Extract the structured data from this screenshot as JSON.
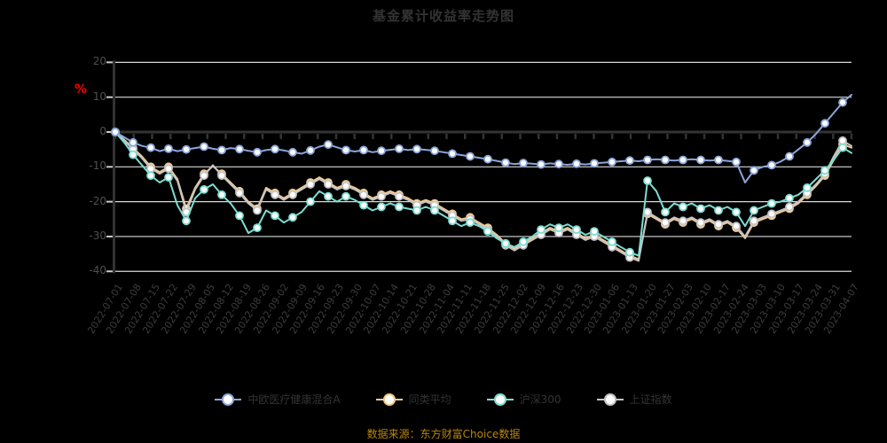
{
  "title": "基金累计收益率走势图",
  "y_axis_unit": {
    "text": "%",
    "color": "#FF0000"
  },
  "footer": "数据来源：东方财富Choice数据",
  "colors": {
    "background": "#000000",
    "grid_line": "#D9D9D9",
    "axis_line": "#333333",
    "title_text": "#333333",
    "tick_text": "#4F4F4F",
    "footer_text": "#B8860B"
  },
  "chart_data": {
    "type": "line",
    "title": "基金累计收益率走势图",
    "ylabel": "%",
    "ylim": [
      -40,
      20
    ],
    "y_ticks": [
      20,
      10,
      0,
      -10,
      -20,
      -30,
      -40
    ],
    "grid": true,
    "legend_position": "bottom",
    "x_tick_labels": [
      "2022-07-01",
      "2022-07-08",
      "2022-07-15",
      "2022-07-22",
      "2022-07-29",
      "2022-08-05",
      "2022-08-12",
      "2022-08-19",
      "2022-08-26",
      "2022-09-02",
      "2022-09-09",
      "2022-09-16",
      "2022-09-23",
      "2022-09-30",
      "2022-10-07",
      "2022-10-14",
      "2022-10-21",
      "2022-10-28",
      "2022-11-04",
      "2022-11-11",
      "2022-11-18",
      "2022-11-25",
      "2022-12-02",
      "2022-12-09",
      "2022-12-16",
      "2022-12-23",
      "2022-12-30",
      "2023-01-06",
      "2023-01-13",
      "2023-01-20",
      "2023-01-27",
      "2023-02-03",
      "2023-02-10",
      "2023-02-17",
      "2023-02-24",
      "2023-03-03",
      "2023-03-10",
      "2023-03-17",
      "2023-03-24",
      "2023-03-31",
      "2023-04-07"
    ],
    "sampling_note": "84 evenly spaced samples per series across full x range",
    "series": [
      {
        "name": "中欧医疗健康混合A",
        "color": "#8AA6DB",
        "values": [
          0,
          -1.5,
          -3,
          -4,
          -4.5,
          -5.5,
          -4.8,
          -5.5,
          -5,
          -4.6,
          -4.2,
          -4.8,
          -5.2,
          -4.6,
          -4.9,
          -5.4,
          -5.8,
          -5.2,
          -4.9,
          -5.3,
          -5.8,
          -6.2,
          -5.3,
          -4.2,
          -3.6,
          -4.4,
          -5.2,
          -5.6,
          -5.2,
          -5.8,
          -5.4,
          -5.1,
          -4.8,
          -5.2,
          -4.9,
          -5.1,
          -5.4,
          -5.8,
          -6.2,
          -6.6,
          -7,
          -7.4,
          -7.8,
          -8.3,
          -8.8,
          -9.2,
          -8.9,
          -9.1,
          -9.3,
          -9,
          -9.2,
          -9.4,
          -9.1,
          -9.3,
          -9,
          -8.8,
          -8.6,
          -8.4,
          -8.2,
          -8.4,
          -8,
          -7.8,
          -8,
          -8.2,
          -8,
          -7.8,
          -8,
          -8.2,
          -8,
          -8.3,
          -8.6,
          -14.5,
          -11,
          -10,
          -9.5,
          -8.5,
          -7,
          -5,
          -3,
          -0.5,
          2.5,
          5.5,
          8.5,
          10.7
        ]
      },
      {
        "name": "同类平均",
        "color": "#EFC98F",
        "values": [
          0,
          -2.2,
          -4.6,
          -7,
          -10,
          -11.5,
          -10,
          -13.5,
          -22,
          -16,
          -12,
          -9.8,
          -12,
          -14.5,
          -17,
          -20,
          -22,
          -16,
          -17.5,
          -19,
          -17.5,
          -16,
          -14.5,
          -13,
          -14.5,
          -16,
          -15,
          -16,
          -17.5,
          -19,
          -18,
          -17,
          -18,
          -19,
          -20.5,
          -19.5,
          -20.5,
          -22,
          -23.5,
          -25,
          -24.5,
          -26,
          -27.5,
          -29.5,
          -32,
          -33.5,
          -32,
          -30.5,
          -29,
          -27.5,
          -28.5,
          -27.5,
          -29,
          -30.5,
          -29.5,
          -31,
          -32.5,
          -34,
          -35.5,
          -36.5,
          -23.5,
          -25,
          -26.5,
          -25,
          -26,
          -25,
          -26.5,
          -25.5,
          -27,
          -26,
          -27.5,
          -30.5,
          -26,
          -25,
          -24,
          -23,
          -22,
          -20.5,
          -18,
          -15.5,
          -12.5,
          -8,
          -3.5,
          -4.5
        ]
      },
      {
        "name": "沪深300",
        "color": "#7CDCD2",
        "values": [
          0,
          -3,
          -6.5,
          -9.5,
          -12.5,
          -14.5,
          -13,
          -21,
          -25.5,
          -19,
          -16.5,
          -15,
          -18,
          -20.5,
          -24,
          -29,
          -27.5,
          -22.5,
          -24,
          -26,
          -24.5,
          -23,
          -20,
          -17,
          -18.5,
          -20,
          -18.5,
          -19.5,
          -21,
          -22.5,
          -21.5,
          -20.5,
          -21.5,
          -22,
          -22.5,
          -21.5,
          -22.5,
          -24,
          -25.5,
          -27,
          -26,
          -27,
          -28.5,
          -30.5,
          -32,
          -33,
          -31.5,
          -30,
          -28,
          -26.5,
          -27.5,
          -26.5,
          -28,
          -29.5,
          -28.5,
          -30,
          -31.5,
          -33,
          -34.5,
          -35.5,
          -14,
          -17,
          -23,
          -20.5,
          -21.5,
          -20.5,
          -22,
          -21,
          -22.5,
          -21.5,
          -23,
          -27,
          -22.5,
          -21.5,
          -20.5,
          -20,
          -19,
          -18,
          -16,
          -13.5,
          -11,
          -8,
          -4.5,
          -6
        ]
      },
      {
        "name": "上证指数",
        "color": "#C4C4C6",
        "values": [
          0,
          -2.5,
          -5,
          -7.5,
          -10.5,
          -12,
          -10.5,
          -14,
          -23,
          -16.5,
          -12.5,
          -9.5,
          -12.5,
          -15,
          -17.5,
          -20.5,
          -22.5,
          -16.5,
          -18,
          -19.5,
          -18,
          -16.5,
          -15,
          -13.5,
          -15,
          -16.5,
          -15.5,
          -16.5,
          -18,
          -19.5,
          -18.5,
          -17.5,
          -18.5,
          -19.5,
          -21,
          -20,
          -21,
          -22.5,
          -24,
          -25.5,
          -25,
          -26.5,
          -28,
          -30,
          -32.5,
          -34,
          -32.5,
          -31,
          -29.5,
          -28,
          -29,
          -28,
          -29.5,
          -31,
          -30,
          -31.5,
          -33,
          -34.5,
          -36,
          -37,
          -23,
          -24.5,
          -26,
          -24.5,
          -25.5,
          -24.5,
          -26,
          -25,
          -26.5,
          -25.5,
          -27,
          -30,
          -25.5,
          -24.5,
          -23.5,
          -22.5,
          -21.5,
          -20,
          -17.5,
          -15,
          -12,
          -7,
          -2.5,
          -4
        ]
      }
    ]
  }
}
